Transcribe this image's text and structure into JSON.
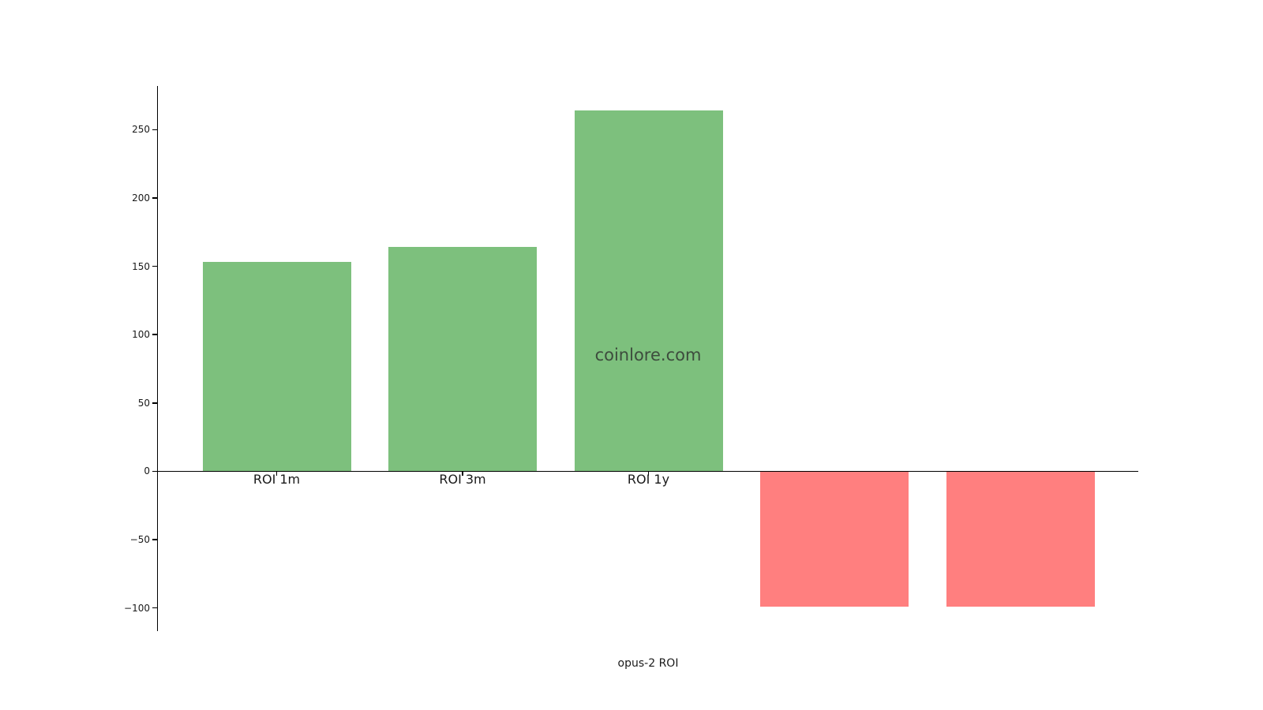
{
  "figure": {
    "background": "#ffffff"
  },
  "watermark": {
    "text": "coinlore.com",
    "color": "rgba(43,43,43,0.78)"
  },
  "chart_data": {
    "type": "bar",
    "title": "",
    "xlabel": "opus-2 ROI",
    "ylabel": "",
    "categories": [
      "ROI 1m",
      "ROI 3m",
      "ROI 1y",
      "",
      ""
    ],
    "values": [
      153,
      164,
      264,
      -99,
      -99
    ],
    "yticks": [
      250,
      200,
      150,
      100,
      50,
      0,
      -50,
      -100
    ],
    "ylim": [
      -117,
      282
    ],
    "grid": false,
    "legend_position": "none",
    "colors": {
      "positive_bar": "#7dc07d",
      "negative_bar": "#ff7f7f",
      "axis": "#000000",
      "tick_label": "#1a1a1a"
    }
  }
}
